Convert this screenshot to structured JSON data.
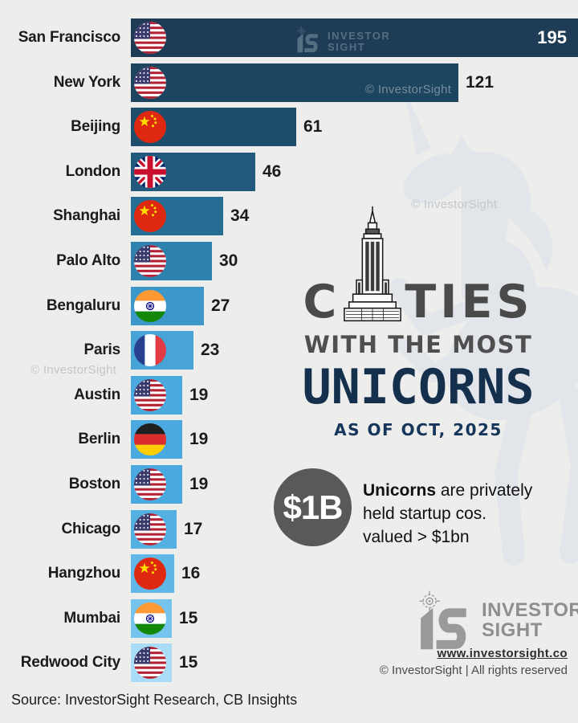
{
  "chart_data": {
    "type": "bar",
    "orientation": "horizontal",
    "title": "CITIES WITH THE MOST UNICORNS",
    "subtitle": "AS OF OCT, 2025",
    "categories": [
      "San Francisco",
      "New York",
      "Beijing",
      "London",
      "Shanghai",
      "Palo Alto",
      "Bengaluru",
      "Paris",
      "Austin",
      "Berlin",
      "Boston",
      "Chicago",
      "Hangzhou",
      "Mumbai",
      "Redwood City"
    ],
    "values": [
      195,
      121,
      61,
      46,
      34,
      30,
      27,
      23,
      19,
      19,
      19,
      17,
      16,
      15,
      15
    ],
    "countries": [
      "us",
      "us",
      "cn",
      "gb",
      "cn",
      "us",
      "in",
      "fr",
      "us",
      "de",
      "us",
      "us",
      "cn",
      "in",
      "us"
    ],
    "bar_colors": [
      "#1e3c55",
      "#1e455f",
      "#1f4e6c",
      "#215a7c",
      "#266d94",
      "#2f81ad",
      "#3e97c9",
      "#48a3d6",
      "#4aa9de",
      "#4aa9de",
      "#4aa9de",
      "#55b0e2",
      "#5fb8e8",
      "#76c4ed",
      "#a9dcf6"
    ],
    "xlabel": "",
    "ylabel": "",
    "legend": "none",
    "grid": false
  },
  "title_block": {
    "line1_prefix": "C",
    "line1_suffix": "TIES",
    "line2": "WITH THE MOST",
    "line3": "UNICORNS",
    "as_of": "AS OF OCT, 2025"
  },
  "definition": {
    "badge": "$1B",
    "line1_bold": "Unicorns",
    "line1_rest": " are privately",
    "line2": "held startup cos.",
    "line3": "valued > $1bn"
  },
  "branding": {
    "name_line1": "INVESTOR",
    "name_line2": "SIGHT",
    "website": "www.investorsight.co",
    "copyright": "© InvestorSight |  All rights reserved"
  },
  "watermarks": {
    "bar_logo_line1": "INVESTOR",
    "bar_logo_line2": "SIGHT",
    "copyright_short": "© InvestorSight"
  },
  "source": "Source: InvestorSight Research, CB Insights",
  "colors": {
    "background": "#ededec",
    "navy": "#14304d",
    "title_gray": "#4a4a4a",
    "badge_gray": "#595959"
  }
}
